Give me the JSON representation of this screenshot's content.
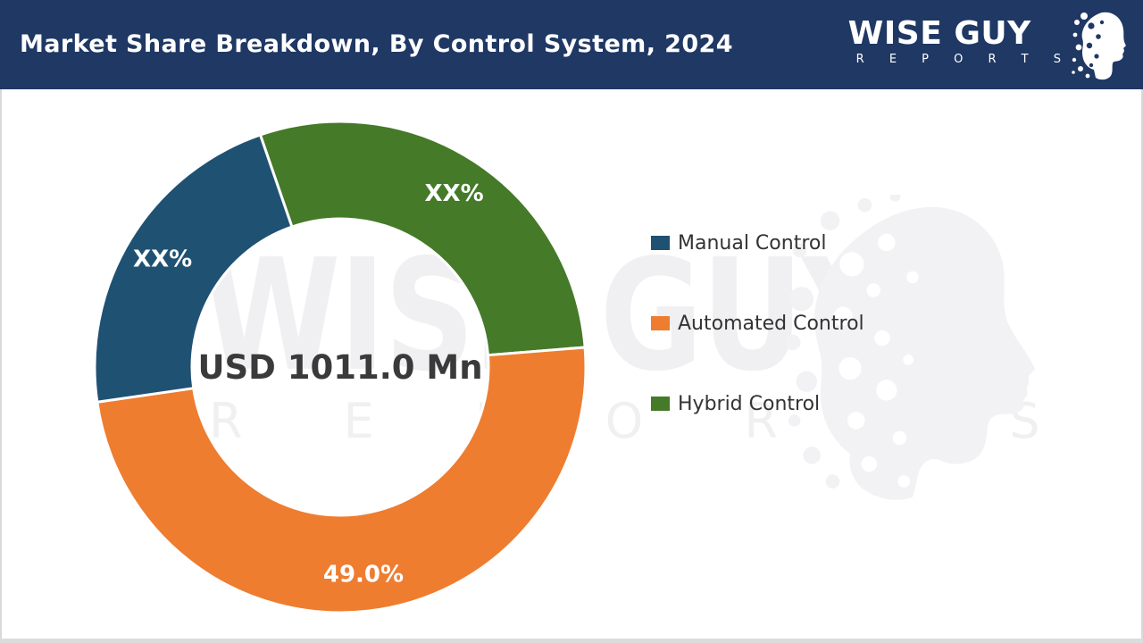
{
  "page": {
    "background": "#ffffff",
    "edge_border_color": "#d9d9d9",
    "bottom_bar_color": "#dcdcdc"
  },
  "header": {
    "bg": "#1f3864",
    "title": "Market Share Breakdown, By Control System, 2024",
    "logo": {
      "line1": "WISE GUY",
      "line2": "R E P O R T S",
      "icon": "face-profile-dots",
      "color": "#ffffff"
    }
  },
  "watermark": {
    "word": "WISE GUY",
    "reports": "R E P O R T S",
    "icon": "face-profile-dots",
    "color": "#f0f0f2"
  },
  "chart_data": {
    "type": "donut",
    "title": "Market Share Breakdown, By Control System, 2024",
    "center_label": "USD 1011.0 Mn",
    "start_angle_deg": -19,
    "draw_order": "slices drawn clockwise from start angle in reverse list order (Hybrid, Automated, Manual)",
    "outer_radius_px": 275,
    "inner_radius_px": 166,
    "label_radius_px": 233,
    "legend_position": "right",
    "slices": [
      {
        "label": "Manual Control",
        "display_value": "XX%",
        "pct": 22,
        "color": "#1f5173"
      },
      {
        "label": "Automated Control",
        "display_value": "49.0%",
        "pct": 49,
        "color": "#ee7d30"
      },
      {
        "label": "Hybrid Control",
        "display_value": "XX%",
        "pct": 29,
        "color": "#447a28"
      }
    ]
  }
}
